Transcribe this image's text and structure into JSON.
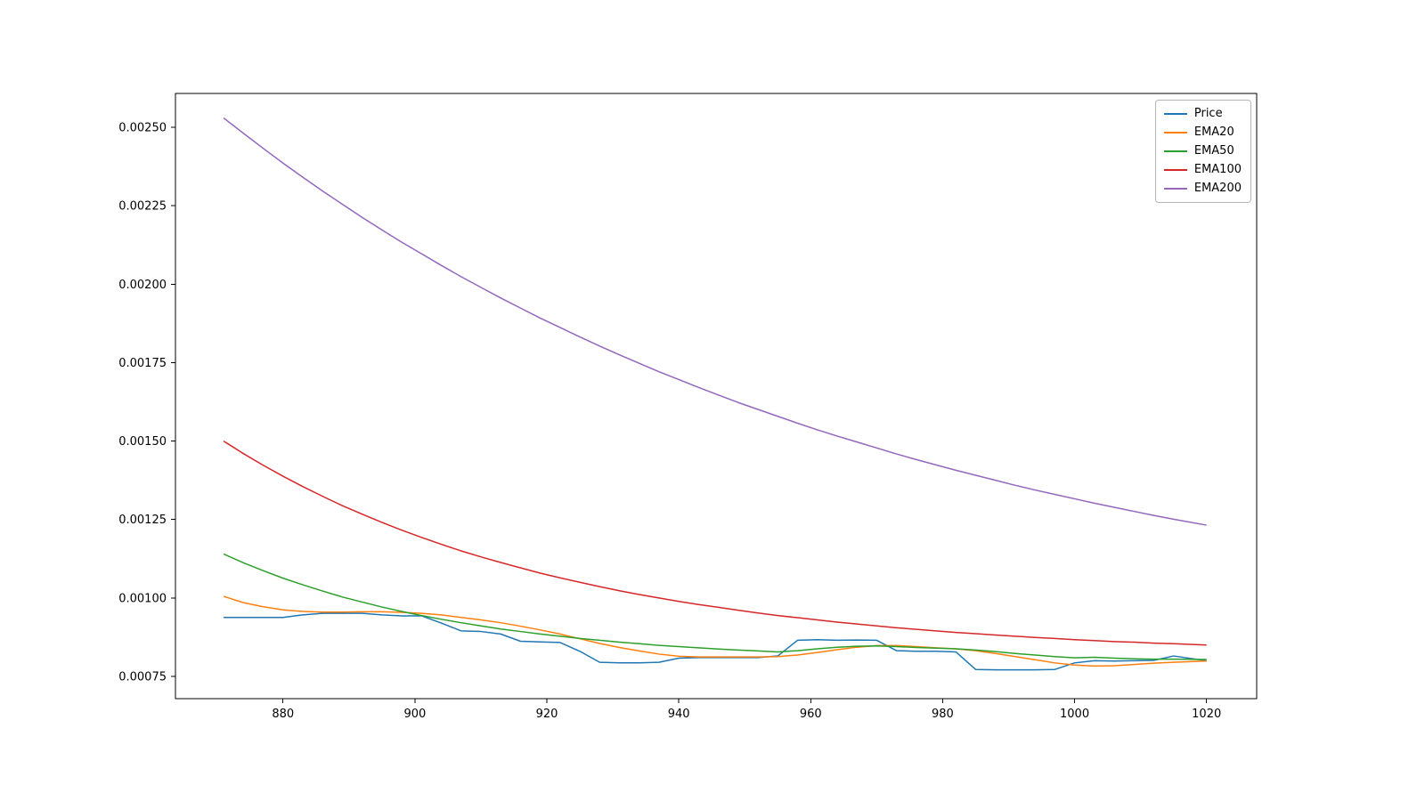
{
  "chart_data": {
    "type": "line",
    "title": "",
    "xlabel": "",
    "ylabel": "",
    "grid": false,
    "legend_position": "upper right",
    "xlim": [
      863.7,
      1027.6
    ],
    "ylim": [
      0.000679,
      0.002608
    ],
    "x_ticks": [
      880,
      900,
      920,
      940,
      960,
      980,
      1000,
      1020
    ],
    "y_ticks": [
      0.00075,
      0.001,
      0.00125,
      0.0015,
      0.00175,
      0.002,
      0.00225,
      0.0025
    ],
    "y_tick_labels": [
      "0.00075",
      "0.00100",
      "0.00125",
      "0.00150",
      "0.00175",
      "0.00200",
      "0.00225",
      "0.00250"
    ],
    "x": [
      871,
      874,
      877,
      880,
      883,
      886,
      889,
      892,
      895,
      898,
      901,
      904,
      907,
      910,
      913,
      916,
      919,
      922,
      925,
      928,
      931,
      934,
      937,
      940,
      943,
      946,
      949,
      952,
      955,
      958,
      961,
      964,
      967,
      970,
      973,
      976,
      979,
      982,
      985,
      988,
      991,
      994,
      997,
      1000,
      1003,
      1006,
      1009,
      1012,
      1015,
      1020
    ],
    "series": [
      {
        "name": "Price",
        "color": "#1f77b4",
        "values": [
          0.000938,
          0.000938,
          0.000938,
          0.000938,
          0.000946,
          0.000951,
          0.000951,
          0.000951,
          0.000946,
          0.000943,
          0.000943,
          0.00092,
          0.000895,
          0.000893,
          0.000885,
          0.000862,
          0.00086,
          0.000858,
          0.00083,
          0.000795,
          0.000793,
          0.000793,
          0.000795,
          0.000808,
          0.00081,
          0.00081,
          0.00081,
          0.00081,
          0.000815,
          0.000865,
          0.000867,
          0.000865,
          0.000866,
          0.000865,
          0.000832,
          0.00083,
          0.00083,
          0.000828,
          0.000772,
          0.000771,
          0.000771,
          0.000771,
          0.000772,
          0.000793,
          0.0008,
          0.000799,
          0.0008,
          0.000801,
          0.000815,
          0.0008
        ]
      },
      {
        "name": "EMA20",
        "color": "#ff7f0e",
        "values": [
          0.001005,
          0.000985,
          0.000972,
          0.000962,
          0.000957,
          0.000955,
          0.000955,
          0.000956,
          0.000956,
          0.000954,
          0.000951,
          0.000946,
          0.000938,
          0.00093,
          0.000921,
          0.00091,
          0.000898,
          0.000885,
          0.00087,
          0.000855,
          0.000842,
          0.000831,
          0.000821,
          0.000814,
          0.000812,
          0.000812,
          0.000812,
          0.000812,
          0.000813,
          0.000818,
          0.000826,
          0.000835,
          0.000843,
          0.000848,
          0.000848,
          0.000845,
          0.000841,
          0.000838,
          0.000832,
          0.000823,
          0.000813,
          0.000803,
          0.000793,
          0.000786,
          0.000783,
          0.000784,
          0.000788,
          0.000792,
          0.000795,
          0.000799
        ]
      },
      {
        "name": "EMA50",
        "color": "#2ca02c",
        "values": [
          0.00114,
          0.001112,
          0.001087,
          0.001063,
          0.001042,
          0.001022,
          0.001003,
          0.000987,
          0.000971,
          0.000957,
          0.000944,
          0.000932,
          0.000921,
          0.000911,
          0.000901,
          0.000893,
          0.000885,
          0.000878,
          0.000871,
          0.000865,
          0.000859,
          0.000854,
          0.000849,
          0.000845,
          0.000841,
          0.000837,
          0.000834,
          0.000831,
          0.000828,
          0.000832,
          0.000838,
          0.000843,
          0.000846,
          0.000847,
          0.000845,
          0.000842,
          0.00084,
          0.000838,
          0.000834,
          0.000829,
          0.000823,
          0.000818,
          0.000813,
          0.000809,
          0.000811,
          0.000808,
          0.000806,
          0.000805,
          0.000805,
          0.000804
        ]
      },
      {
        "name": "EMA100",
        "color": "#d62728",
        "values": [
          0.0015,
          0.00146,
          0.001423,
          0.001388,
          0.001355,
          0.001324,
          0.001294,
          0.001267,
          0.001241,
          0.001216,
          0.001193,
          0.001171,
          0.00115,
          0.001131,
          0.001113,
          0.001096,
          0.001079,
          0.001064,
          0.00105,
          0.001036,
          0.001023,
          0.001011,
          0.001,
          0.000989,
          0.000979,
          0.00097,
          0.000961,
          0.000952,
          0.000944,
          0.000937,
          0.00093,
          0.000923,
          0.000917,
          0.000911,
          0.000905,
          0.0009,
          0.000895,
          0.00089,
          0.000886,
          0.000882,
          0.000878,
          0.000874,
          0.000871,
          0.000867,
          0.000864,
          0.000861,
          0.000859,
          0.000856,
          0.000854,
          0.00085
        ]
      },
      {
        "name": "EMA200",
        "color": "#9467bd",
        "values": [
          0.00253,
          0.002481,
          0.002433,
          0.002386,
          0.002341,
          0.002297,
          0.002255,
          0.002213,
          0.002173,
          0.002134,
          0.002097,
          0.00206,
          0.002024,
          0.00199,
          0.001956,
          0.001924,
          0.001892,
          0.001862,
          0.001832,
          0.001803,
          0.001775,
          0.001748,
          0.001721,
          0.001696,
          0.001671,
          0.001647,
          0.001623,
          0.001601,
          0.001579,
          0.001557,
          0.001536,
          0.001516,
          0.001497,
          0.001478,
          0.001459,
          0.001441,
          0.001424,
          0.001407,
          0.001391,
          0.001375,
          0.001359,
          0.001344,
          0.00133,
          0.001316,
          0.001302,
          0.001289,
          0.001276,
          0.001263,
          0.001251,
          0.001232
        ]
      }
    ]
  }
}
